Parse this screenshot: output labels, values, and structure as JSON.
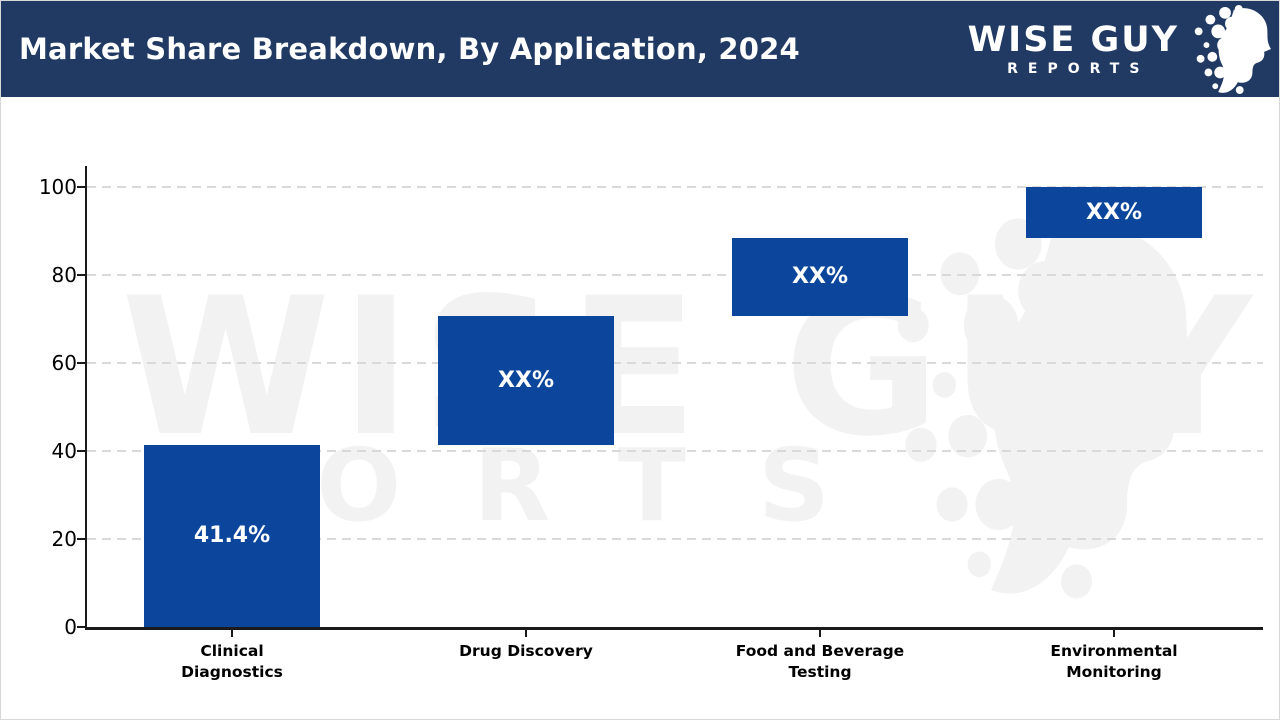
{
  "header": {
    "title": "Market Share Breakdown, By Application, 2024",
    "logo": {
      "name": "WISE GUY",
      "subtitle": "REPORTS"
    }
  },
  "watermark": {
    "line1": "WISE GUY",
    "line2": "PORTS"
  },
  "colors": {
    "header_bg": "#213a64",
    "bar": "#0b469c",
    "grid": "#d9d9d9",
    "axis": "#1a1a1a",
    "bar_label_text": "#ffffff"
  },
  "chart_data": {
    "type": "bar",
    "variant": "waterfall-floating-bars",
    "title": "Market Share Breakdown, By Application, 2024",
    "categories": [
      "Clinical Diagnostics",
      "Drug Discovery",
      "Food and Beverage Testing",
      "Environmental Monitoring"
    ],
    "axis_labels": [
      "Clinical\nDiagnostics",
      "Drug Discovery",
      "Food and Beverage\nTesting",
      "Environmental\nMonitoring"
    ],
    "segments": [
      {
        "category": "Clinical Diagnostics",
        "start": 0,
        "end": 41.4,
        "label": "41.4%"
      },
      {
        "category": "Drug Discovery",
        "start": 41.4,
        "end": 70.7,
        "label": "XX%"
      },
      {
        "category": "Food and Beverage Testing",
        "start": 70.7,
        "end": 88.4,
        "label": "XX%"
      },
      {
        "category": "Environmental Monitoring",
        "start": 88.4,
        "end": 100,
        "label": "XX%"
      }
    ],
    "xlabel": "",
    "ylabel": "",
    "ylim": [
      0,
      100
    ],
    "yticks": [
      0,
      20,
      40,
      60,
      80,
      100
    ],
    "grid": "horizontal-dashed",
    "legend": "none"
  }
}
